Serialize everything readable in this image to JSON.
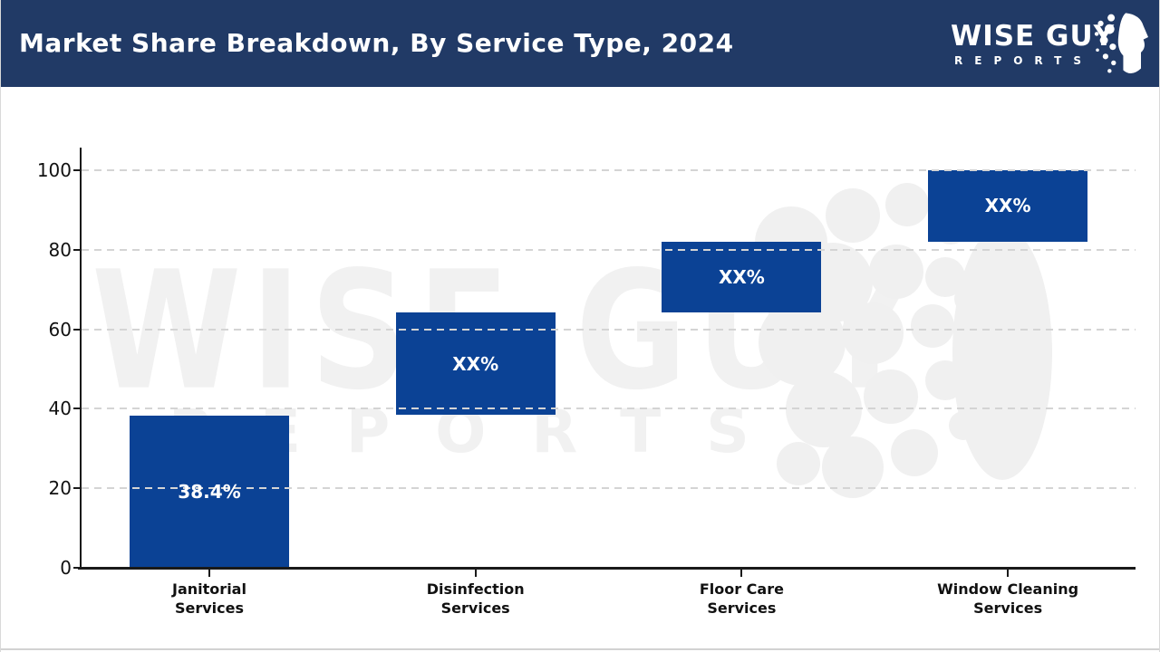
{
  "header": {
    "title": "Market Share Breakdown, By Service Type, 2024",
    "bg_color": "#213a66",
    "logo": {
      "line1": "WISE GUY",
      "line2": "REPORTS"
    }
  },
  "watermark": {
    "line1": "WISE GUY",
    "line2": "REPORTS"
  },
  "chart_data": {
    "type": "bar",
    "variant": "waterfall",
    "title": "Market Share Breakdown, By Service Type, 2024",
    "categories": [
      "Janitorial Services",
      "Disinfection Services",
      "Floor Care Services",
      "Window Cleaning Services"
    ],
    "segments": [
      {
        "category": "Janitorial Services",
        "start": 0,
        "end": 38.4,
        "label": "38.4%"
      },
      {
        "category": "Disinfection Services",
        "start": 38.4,
        "end": 64.2,
        "label": "XX%"
      },
      {
        "category": "Floor Care Services",
        "start": 64.2,
        "end": 82.1,
        "label": "XX%"
      },
      {
        "category": "Window Cleaning Services",
        "start": 82.1,
        "end": 100,
        "label": "XX%"
      }
    ],
    "ylim": [
      0,
      100
    ],
    "yticks": [
      0,
      20,
      40,
      60,
      80,
      100
    ],
    "grid": {
      "show": true,
      "style": "dashed",
      "color": "#d4d4d4",
      "drawn_over_bars": true
    },
    "bar_color": "#0b4295",
    "bar_label_color": "#ffffff",
    "axis_color": "#1a1a1a",
    "xlabel": "",
    "ylabel": ""
  }
}
